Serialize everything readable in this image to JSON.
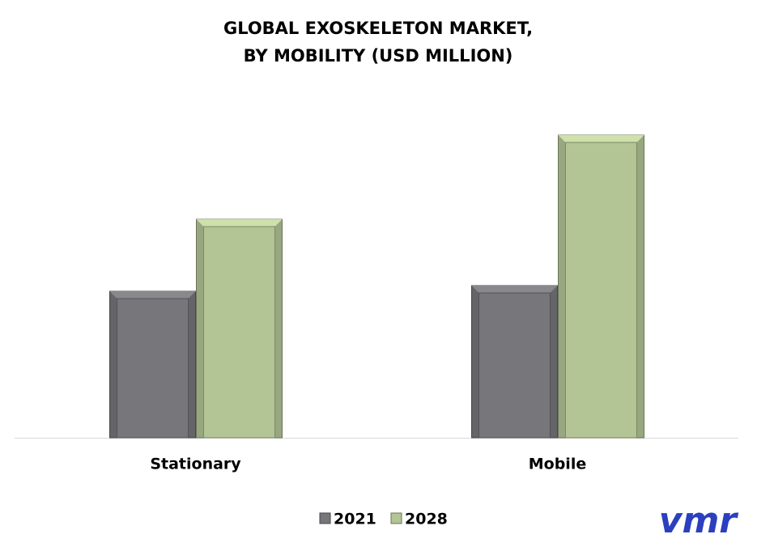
{
  "chart_data": {
    "type": "bar",
    "title": [
      "GLOBAL EXOSKELETON MARKET,",
      "BY MOBILITY (USD MILLION)"
    ],
    "categories": [
      "Stationary",
      "Mobile"
    ],
    "series": [
      {
        "name": "2021",
        "color": "#77767b",
        "values": [
          181,
          188
        ]
      },
      {
        "name": "2028",
        "color": "#b3c495",
        "values": [
          270,
          374
        ]
      }
    ],
    "ylim": [
      0,
      400
    ],
    "logo": "vmr"
  }
}
